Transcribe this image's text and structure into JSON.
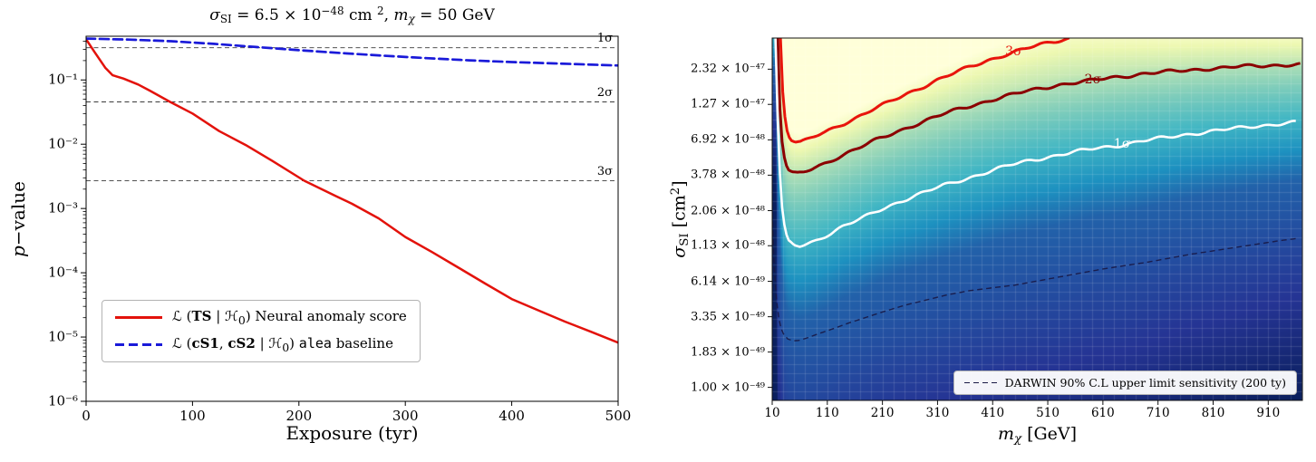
{
  "page": {
    "background": "#ffffff"
  },
  "chart_data": [
    {
      "id": "pvalue-vs-exposure",
      "type": "line",
      "title_segments": [
        {
          "t": "σ",
          "i": true
        },
        {
          "t": "SI",
          "sub": true
        },
        {
          "t": " = 6.5 × 10"
        },
        {
          "t": "−48",
          "sup": true
        },
        {
          "t": " cm "
        },
        {
          "t": "2",
          "sup": true
        },
        {
          "t": ", "
        },
        {
          "t": "m",
          "i": true
        },
        {
          "t": "χ",
          "sub": true,
          "i": true
        },
        {
          "t": " = 50 GeV"
        }
      ],
      "xlabel": "Exposure (tyr)",
      "ylabel_segments": [
        {
          "t": "p",
          "i": true
        },
        {
          "t": "−value"
        }
      ],
      "xlim": [
        0,
        500
      ],
      "ylim_log": [
        -6,
        -0.32
      ],
      "xticks": [
        0,
        100,
        200,
        300,
        400,
        500
      ],
      "yticks": [
        {
          "v": 0.1,
          "label": "10⁻¹"
        },
        {
          "v": 0.01,
          "label": "10⁻²"
        },
        {
          "v": 0.001,
          "label": "10⁻³"
        },
        {
          "v": 0.0001,
          "label": "10⁻⁴"
        },
        {
          "v": 1e-05,
          "label": "10⁻⁵"
        },
        {
          "v": 1e-06,
          "label": "10⁻⁶"
        }
      ],
      "grid": false,
      "sigma_lines": [
        {
          "v": 0.3173,
          "label": "1σ"
        },
        {
          "v": 0.0455,
          "label": "2σ"
        },
        {
          "v": 0.0027,
          "label": "3σ"
        }
      ],
      "legend_position": "lower-left",
      "series": [
        {
          "name": "neural-anomaly-score",
          "label_segments": [
            {
              "t": "ℒ"
            },
            {
              "t": " ("
            },
            {
              "t": "TS",
              "b": true
            },
            {
              "t": " | ℋ"
            },
            {
              "t": "0",
              "sub": true
            },
            {
              "t": ") Neural anomaly score"
            }
          ],
          "color": "#e3120b",
          "dash": null,
          "width": 2.5,
          "points": [
            [
              0,
              0.43
            ],
            [
              8,
              0.27
            ],
            [
              18,
              0.155
            ],
            [
              25,
              0.118
            ],
            [
              35,
              0.105
            ],
            [
              49,
              0.085
            ],
            [
              60,
              0.068
            ],
            [
              79,
              0.0455
            ],
            [
              100,
              0.03
            ],
            [
              125,
              0.016
            ],
            [
              150,
              0.0097
            ],
            [
              175,
              0.0055
            ],
            [
              205,
              0.0027
            ],
            [
              235,
              0.00155
            ],
            [
              250,
              0.00118
            ],
            [
              275,
              0.0007
            ],
            [
              300,
              0.00036
            ],
            [
              325,
              0.00021
            ],
            [
              350,
              0.00012
            ],
            [
              375,
              6.8e-05
            ],
            [
              400,
              3.9e-05
            ],
            [
              425,
              2.6e-05
            ],
            [
              450,
              1.74e-05
            ],
            [
              475,
              1.2e-05
            ],
            [
              500,
              8.2e-06
            ]
          ]
        },
        {
          "name": "alea-baseline",
          "label_segments": [
            {
              "t": "ℒ"
            },
            {
              "t": " ("
            },
            {
              "t": "cS1",
              "b": true
            },
            {
              "t": ", "
            },
            {
              "t": "cS2",
              "b": true
            },
            {
              "t": " | ℋ"
            },
            {
              "t": "0",
              "sub": true
            },
            {
              "t": ") "
            },
            {
              "t": "alea",
              "mono": true
            },
            {
              "t": " baseline"
            }
          ],
          "color": "#1a1ad9",
          "dash": "10 5",
          "width": 2.7,
          "points": [
            [
              0,
              0.44
            ],
            [
              40,
              0.425
            ],
            [
              80,
              0.4
            ],
            [
              120,
              0.365
            ],
            [
              160,
              0.325
            ],
            [
              200,
              0.29
            ],
            [
              240,
              0.262
            ],
            [
              280,
              0.238
            ],
            [
              320,
              0.218
            ],
            [
              360,
              0.202
            ],
            [
              400,
              0.19
            ],
            [
              440,
              0.181
            ],
            [
              500,
              0.168
            ]
          ]
        }
      ]
    },
    {
      "id": "sensitivity-map",
      "type": "heatmap",
      "xlabel_segments": [
        {
          "t": "m",
          "i": true
        },
        {
          "t": "χ",
          "sub": true,
          "i": true
        },
        {
          "t": " [GeV]"
        }
      ],
      "ylabel_segments": [
        {
          "t": "σ",
          "i": true
        },
        {
          "t": "SI",
          "sub": true
        },
        {
          "t": " [cm"
        },
        {
          "t": "2",
          "sup": true
        },
        {
          "t": "]"
        }
      ],
      "xlim": [
        10,
        972
      ],
      "ylim_log": [
        -49.097,
        -46.403
      ],
      "xticks": [
        10,
        110,
        210,
        310,
        410,
        510,
        610,
        710,
        810,
        910
      ],
      "yticks": [
        {
          "v": 2.32e-47,
          "label": "2.32 × 10⁻⁴⁷"
        },
        {
          "v": 1.27e-47,
          "label": "1.27 × 10⁻⁴⁷"
        },
        {
          "v": 6.92e-48,
          "label": "6.92 × 10⁻⁴⁸"
        },
        {
          "v": 3.78e-48,
          "label": "3.78 × 10⁻⁴⁸"
        },
        {
          "v": 2.06e-48,
          "label": "2.06 × 10⁻⁴⁸"
        },
        {
          "v": 1.13e-48,
          "label": "1.13 × 10⁻⁴⁸"
        },
        {
          "v": 6.14e-49,
          "label": "6.14 × 10⁻⁴⁹"
        },
        {
          "v": 3.35e-49,
          "label": "3.35 × 10⁻⁴⁹"
        },
        {
          "v": 1.83e-49,
          "label": "1.83 × 10⁻⁴⁹"
        },
        {
          "v": 1e-49,
          "label": "1.00 × 10⁻⁴⁹"
        }
      ],
      "colormap_stops": [
        "#081d58",
        "#253494",
        "#225ea8",
        "#1d91c0",
        "#41b6c4",
        "#7fcdbb",
        "#c7e9b4",
        "#edf8b1",
        "#ffffd9"
      ],
      "grid_color": "rgba(255,255,255,0.13)",
      "contours": [
        {
          "name": "contour-3sigma",
          "label": "3σ",
          "color": "#e8150c",
          "width": 3,
          "label_at_m": 448,
          "points_log": [
            [
              25,
              -46.4
            ],
            [
              27,
              -46.62
            ],
            [
              29,
              -46.8
            ],
            [
              32,
              -46.95
            ],
            [
              35,
              -47.05
            ],
            [
              39,
              -47.12
            ],
            [
              44,
              -47.155
            ],
            [
              52,
              -47.175
            ],
            [
              62,
              -47.18
            ],
            [
              75,
              -47.16
            ],
            [
              90,
              -47.13
            ],
            [
              110,
              -47.095
            ],
            [
              135,
              -47.045
            ],
            [
              160,
              -47.0
            ],
            [
              190,
              -46.94
            ],
            [
              220,
              -46.885
            ],
            [
              250,
              -46.825
            ],
            [
              280,
              -46.77
            ],
            [
              310,
              -46.715
            ],
            [
              340,
              -46.665
            ],
            [
              370,
              -46.615
            ],
            [
              400,
              -46.57
            ],
            [
              430,
              -46.53
            ],
            [
              460,
              -46.495
            ],
            [
              490,
              -46.46
            ],
            [
              515,
              -46.435
            ],
            [
              535,
              -46.415
            ],
            [
              552,
              -46.4
            ]
          ]
        },
        {
          "name": "contour-2sigma",
          "label": "2σ",
          "color": "#8b0000",
          "width": 3,
          "label_at_m": 592,
          "points_log": [
            [
              20,
              -46.4
            ],
            [
              22,
              -46.68
            ],
            [
              24,
              -46.92
            ],
            [
              27,
              -47.13
            ],
            [
              30,
              -47.24
            ],
            [
              34,
              -47.33
            ],
            [
              39,
              -47.385
            ],
            [
              46,
              -47.41
            ],
            [
              55,
              -47.415
            ],
            [
              65,
              -47.405
            ],
            [
              80,
              -47.38
            ],
            [
              100,
              -47.345
            ],
            [
              125,
              -47.295
            ],
            [
              150,
              -47.25
            ],
            [
              175,
              -47.205
            ],
            [
              200,
              -47.16
            ],
            [
              230,
              -47.11
            ],
            [
              260,
              -47.06
            ],
            [
              290,
              -47.015
            ],
            [
              320,
              -46.97
            ],
            [
              350,
              -46.93
            ],
            [
              380,
              -46.895
            ],
            [
              410,
              -46.86
            ],
            [
              440,
              -46.83
            ],
            [
              470,
              -46.8
            ],
            [
              500,
              -46.775
            ],
            [
              530,
              -46.75
            ],
            [
              560,
              -46.735
            ],
            [
              590,
              -46.72
            ],
            [
              620,
              -46.7
            ],
            [
              650,
              -46.685
            ],
            [
              680,
              -46.67
            ],
            [
              710,
              -46.66
            ],
            [
              740,
              -46.65
            ],
            [
              770,
              -46.64
            ],
            [
              800,
              -46.63
            ],
            [
              830,
              -46.625
            ],
            [
              860,
              -46.615
            ],
            [
              890,
              -46.61
            ],
            [
              920,
              -46.605
            ],
            [
              950,
              -46.6
            ],
            [
              968,
              -46.6
            ]
          ]
        },
        {
          "name": "contour-1sigma",
          "label": "1σ",
          "color": "#ffffff",
          "width": 2.6,
          "label_at_m": 645,
          "points_log": [
            [
              16,
              -46.4
            ],
            [
              18,
              -46.72
            ],
            [
              20,
              -47.02
            ],
            [
              23,
              -47.33
            ],
            [
              26,
              -47.58
            ],
            [
              30,
              -47.76
            ],
            [
              35,
              -47.87
            ],
            [
              40,
              -47.92
            ],
            [
              50,
              -47.945
            ],
            [
              60,
              -47.95
            ],
            [
              72,
              -47.935
            ],
            [
              85,
              -47.915
            ],
            [
              100,
              -47.885
            ],
            [
              120,
              -47.845
            ],
            [
              140,
              -47.8
            ],
            [
              170,
              -47.75
            ],
            [
              200,
              -47.69
            ],
            [
              240,
              -47.62
            ],
            [
              280,
              -47.56
            ],
            [
              320,
              -47.5
            ],
            [
              360,
              -47.45
            ],
            [
              400,
              -47.4
            ],
            [
              440,
              -47.35
            ],
            [
              480,
              -47.31
            ],
            [
              520,
              -47.28
            ],
            [
              560,
              -47.25
            ],
            [
              600,
              -47.22
            ],
            [
              640,
              -47.2
            ],
            [
              680,
              -47.17
            ],
            [
              720,
              -47.145
            ],
            [
              760,
              -47.12
            ],
            [
              800,
              -47.1
            ],
            [
              840,
              -47.08
            ],
            [
              880,
              -47.06
            ],
            [
              920,
              -47.045
            ],
            [
              960,
              -47.03
            ]
          ]
        }
      ],
      "darwin_line": {
        "name": "darwin-upper-limit",
        "label": "DARWIN 90% C.L upper limit sensitivity (200 ty)",
        "color": "#191945",
        "dash": "6 4",
        "width": 1.4,
        "points_log": [
          [
            10,
            -47.7
          ],
          [
            13,
            -48.05
          ],
          [
            16,
            -48.28
          ],
          [
            20,
            -48.44
          ],
          [
            25,
            -48.55
          ],
          [
            30,
            -48.6
          ],
          [
            38,
            -48.64
          ],
          [
            48,
            -48.655
          ],
          [
            60,
            -48.65
          ],
          [
            75,
            -48.63
          ],
          [
            95,
            -48.6
          ],
          [
            120,
            -48.565
          ],
          [
            150,
            -48.52
          ],
          [
            180,
            -48.48
          ],
          [
            210,
            -48.44
          ],
          [
            250,
            -48.39
          ],
          [
            290,
            -48.35
          ],
          [
            330,
            -48.31
          ],
          [
            370,
            -48.28
          ],
          [
            410,
            -48.26
          ],
          [
            450,
            -48.24
          ],
          [
            490,
            -48.21
          ],
          [
            530,
            -48.18
          ],
          [
            570,
            -48.15
          ],
          [
            610,
            -48.12
          ],
          [
            650,
            -48.095
          ],
          [
            690,
            -48.07
          ],
          [
            730,
            -48.04
          ],
          [
            770,
            -48.01
          ],
          [
            810,
            -47.985
          ],
          [
            850,
            -47.96
          ],
          [
            890,
            -47.935
          ],
          [
            930,
            -47.91
          ],
          [
            968,
            -47.89
          ]
        ]
      }
    }
  ]
}
